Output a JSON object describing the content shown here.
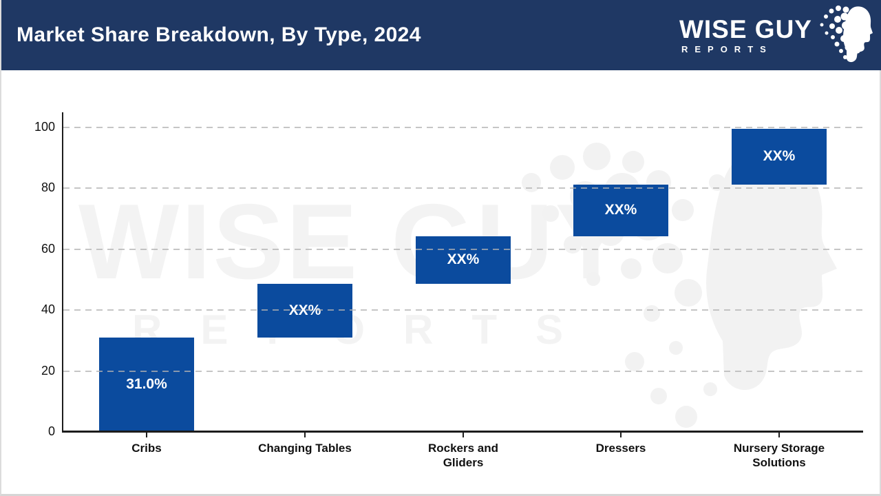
{
  "header": {
    "title": "Market Share Breakdown, By Type, 2024",
    "background": "#1f3864",
    "logo": {
      "line1": "WISE GUY",
      "line2": "REPORTS"
    }
  },
  "watermark": {
    "line1": "WISE GUY",
    "line2": "REPORTS"
  },
  "chart_data": {
    "type": "bar",
    "subtype": "floating-waterfall",
    "title": "Market Share Breakdown, By Type, 2024",
    "categories": [
      "Cribs",
      "Changing Tables",
      "Rockers and\nGliders",
      "Dressers",
      "Nursery Storage\nSolutions"
    ],
    "segments": [
      {
        "start": 0,
        "end": 31.0,
        "label": "31.0%"
      },
      {
        "start": 31.0,
        "end": 48.6,
        "label": "XX%"
      },
      {
        "start": 48.6,
        "end": 64.2,
        "label": "XX%"
      },
      {
        "start": 64.2,
        "end": 81.2,
        "label": "XX%"
      },
      {
        "start": 81.2,
        "end": 99.5,
        "label": "XX%"
      }
    ],
    "xlabel": "",
    "ylabel": "",
    "yticks": [
      0,
      20,
      40,
      60,
      80,
      100
    ],
    "ylim": [
      0,
      105
    ],
    "grid": true,
    "legend": false,
    "bar_color": "#0b4b9e",
    "bar_label_color": "#ffffff",
    "grid_color": "#c9c9c9",
    "axis_color": "#1c1c1c"
  }
}
